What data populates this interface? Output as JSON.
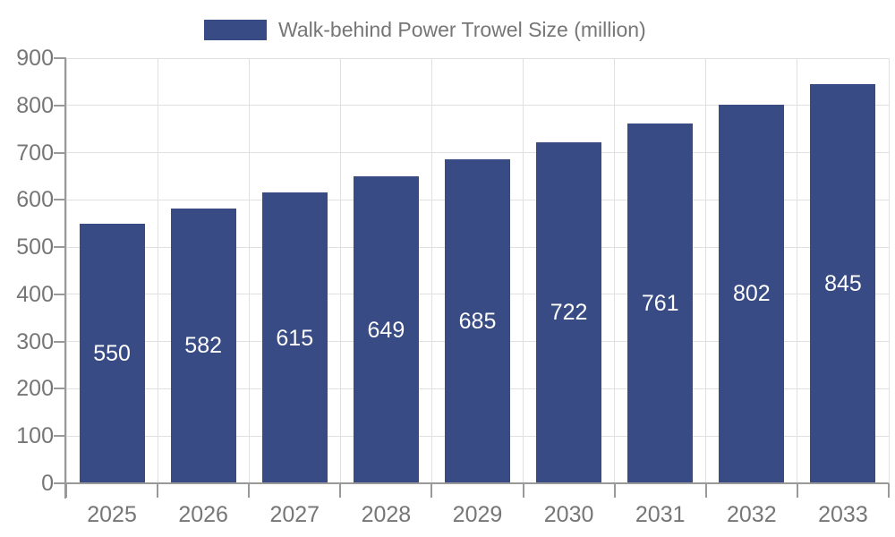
{
  "legend": {
    "label": "Walk-behind Power Trowel Size (million)"
  },
  "colors": {
    "bar": "#384B84",
    "value_label": "#FFFFFF",
    "axis_text": "#767676",
    "grid": "#E0E0E0",
    "axis_line": "#999999",
    "tick": "#999999"
  },
  "chart_data": {
    "type": "bar",
    "title": "Walk-behind Power Trowel Size (million)",
    "categories": [
      "2025",
      "2026",
      "2027",
      "2028",
      "2029",
      "2030",
      "2031",
      "2032",
      "2033"
    ],
    "values": [
      550,
      582,
      615,
      649,
      685,
      722,
      761,
      802,
      845
    ],
    "xlabel": "",
    "ylabel": "",
    "ylim": [
      0,
      900
    ],
    "ytick_step": 100,
    "yticks": [
      0,
      100,
      200,
      300,
      400,
      500,
      600,
      700,
      800,
      900
    ],
    "grid": true,
    "legend_position": "top",
    "value_labels": "inside-center",
    "bar_color": "#384B84"
  }
}
